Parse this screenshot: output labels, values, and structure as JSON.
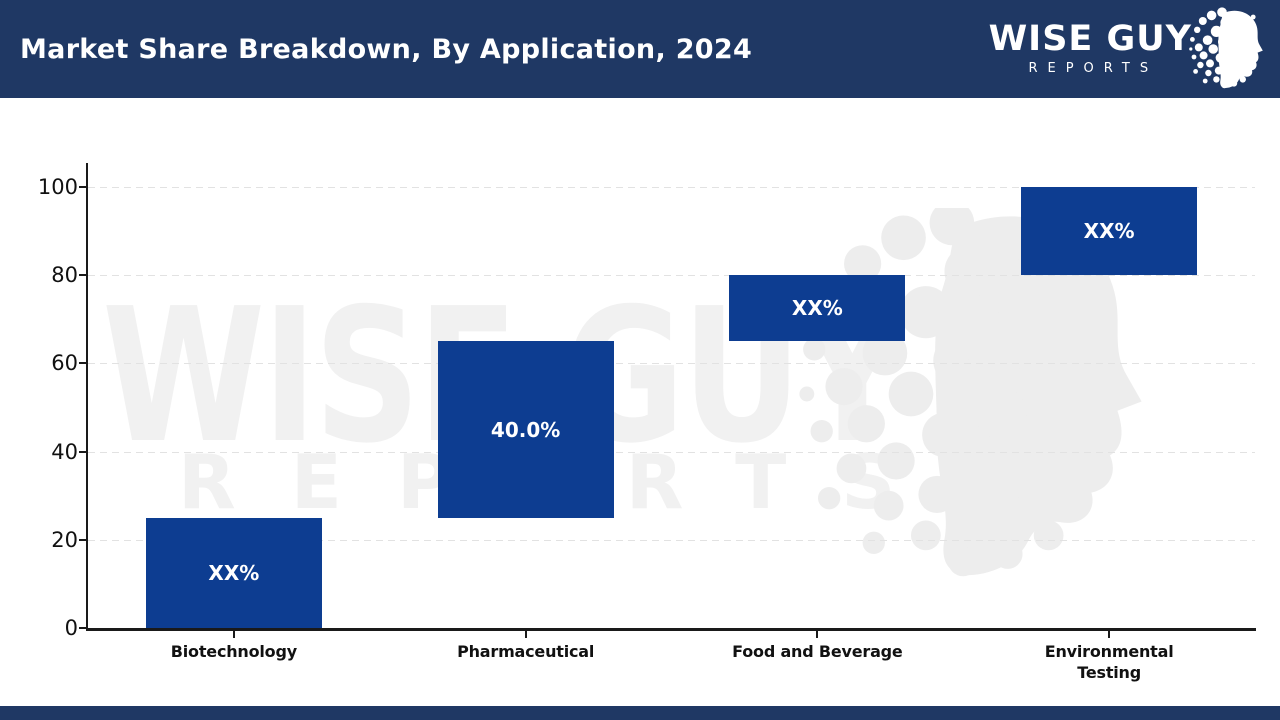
{
  "header": {
    "title": "Market Share Breakdown, By Application, 2024",
    "background": "#1f3864",
    "logo": {
      "brand_line1": "WISE GUY",
      "brand_line2": "REPORTS"
    }
  },
  "watermark": {
    "line1": "WISE GUY",
    "line2": "REPORTS",
    "color": "#f1f1f1",
    "head_color": "#ededed"
  },
  "footer": {
    "background": "#1f3864"
  },
  "chart_data": {
    "type": "bar",
    "variant": "floating-waterfall",
    "title": "Market Share Breakdown, By Application, 2024",
    "categories": [
      "Biotechnology",
      "Pharmaceutical",
      "Food and Beverage",
      "Environmental Testing"
    ],
    "categories_display": [
      "Biotechnology",
      "Pharmaceutical",
      "Food and Beverage",
      "Environmental\nTesting"
    ],
    "segments": [
      {
        "category": "Biotechnology",
        "start": 0,
        "end": 25,
        "label": "XX%"
      },
      {
        "category": "Pharmaceutical",
        "start": 25,
        "end": 65,
        "label": "40.0%"
      },
      {
        "category": "Food and Beverage",
        "start": 65,
        "end": 80,
        "label": "XX%"
      },
      {
        "category": "Environmental Testing",
        "start": 80,
        "end": 100,
        "label": "XX%"
      }
    ],
    "yticks": [
      0,
      20,
      40,
      60,
      80,
      100
    ],
    "ylim": [
      0,
      105
    ],
    "xlabel": "",
    "ylabel": "",
    "grid": "horizontal-dashed",
    "legend": "none",
    "colors": {
      "bar": "#0d3d91",
      "bar_label": "#ffffff",
      "axis": "#1a1a1a",
      "grid": "#e2e2e2",
      "tick_label": "#111111"
    }
  }
}
